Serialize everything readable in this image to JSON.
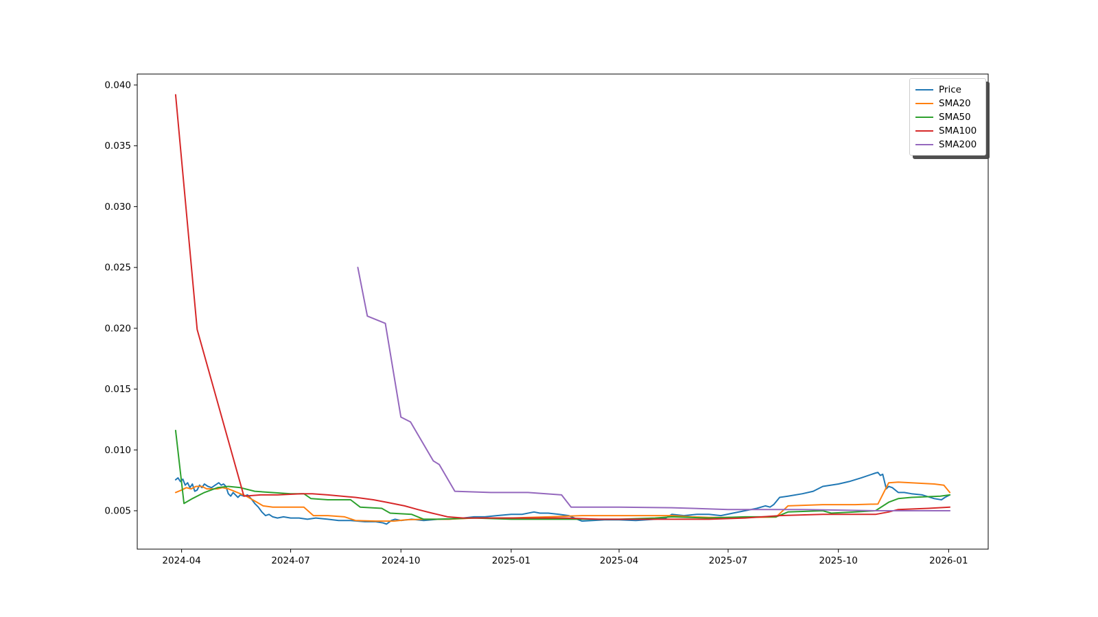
{
  "figure": {
    "background": "#ffffff",
    "title": ""
  },
  "chart_data": {
    "type": "line",
    "title": "",
    "xlabel": "",
    "ylabel": "",
    "grid": false,
    "legend_position": "upper right",
    "xlim_dates": [
      "2024-02-24",
      "2026-02-03"
    ],
    "ylim": [
      0.001844,
      0.0409
    ],
    "x_ticks": [
      {
        "date": "2024-04-01",
        "label": "2024-04"
      },
      {
        "date": "2024-07-01",
        "label": "2024-07"
      },
      {
        "date": "2024-10-01",
        "label": "2024-10"
      },
      {
        "date": "2025-01-01",
        "label": "2025-01"
      },
      {
        "date": "2025-04-01",
        "label": "2025-04"
      },
      {
        "date": "2025-07-01",
        "label": "2025-07"
      },
      {
        "date": "2025-10-01",
        "label": "2025-10"
      },
      {
        "date": "2026-01-01",
        "label": "2026-01"
      }
    ],
    "y_ticks": [
      {
        "value": 0.005,
        "label": "0.005"
      },
      {
        "value": 0.01,
        "label": "0.010"
      },
      {
        "value": 0.015,
        "label": "0.015"
      },
      {
        "value": 0.02,
        "label": "0.020"
      },
      {
        "value": 0.025,
        "label": "0.025"
      },
      {
        "value": 0.03,
        "label": "0.030"
      },
      {
        "value": 0.035,
        "label": "0.035"
      },
      {
        "value": 0.04,
        "label": "0.040"
      }
    ],
    "series": [
      {
        "name": "Price",
        "color": "#1f77b4",
        "points": [
          [
            "2024-03-27",
            0.00755
          ],
          [
            "2024-03-29",
            0.0077
          ],
          [
            "2024-03-31",
            0.0074
          ],
          [
            "2024-04-02",
            0.0076
          ],
          [
            "2024-04-04",
            0.0071
          ],
          [
            "2024-04-06",
            0.0073
          ],
          [
            "2024-04-08",
            0.0069
          ],
          [
            "2024-04-10",
            0.0072
          ],
          [
            "2024-04-12",
            0.0066
          ],
          [
            "2024-04-14",
            0.0067
          ],
          [
            "2024-04-16",
            0.0071
          ],
          [
            "2024-04-18",
            0.0069
          ],
          [
            "2024-04-20",
            0.0072
          ],
          [
            "2024-04-23",
            0.007
          ],
          [
            "2024-04-26",
            0.0069
          ],
          [
            "2024-04-29",
            0.0071
          ],
          [
            "2024-05-02",
            0.0073
          ],
          [
            "2024-05-04",
            0.0071
          ],
          [
            "2024-05-06",
            0.0072
          ],
          [
            "2024-05-08",
            0.007
          ],
          [
            "2024-05-10",
            0.0064
          ],
          [
            "2024-05-12",
            0.0062
          ],
          [
            "2024-05-14",
            0.0065
          ],
          [
            "2024-05-16",
            0.0063
          ],
          [
            "2024-05-18",
            0.0061
          ],
          [
            "2024-05-20",
            0.0063
          ],
          [
            "2024-05-23",
            0.0062
          ],
          [
            "2024-05-26",
            0.0063
          ],
          [
            "2024-05-29",
            0.006
          ],
          [
            "2024-06-01",
            0.0056
          ],
          [
            "2024-06-04",
            0.0053
          ],
          [
            "2024-06-07",
            0.0049
          ],
          [
            "2024-06-10",
            0.0046
          ],
          [
            "2024-06-13",
            0.0047
          ],
          [
            "2024-06-16",
            0.0045
          ],
          [
            "2024-06-20",
            0.0044
          ],
          [
            "2024-06-25",
            0.0045
          ],
          [
            "2024-07-01",
            0.0044
          ],
          [
            "2024-07-08",
            0.0044
          ],
          [
            "2024-07-15",
            0.0043
          ],
          [
            "2024-07-22",
            0.0044
          ],
          [
            "2024-08-01",
            0.0043
          ],
          [
            "2024-08-10",
            0.0042
          ],
          [
            "2024-08-20",
            0.0042
          ],
          [
            "2024-09-01",
            0.0041
          ],
          [
            "2024-09-10",
            0.0041
          ],
          [
            "2024-09-16",
            0.004
          ],
          [
            "2024-09-19",
            0.0039
          ],
          [
            "2024-09-23",
            0.0042
          ],
          [
            "2024-09-26",
            0.0043
          ],
          [
            "2024-10-01",
            0.0042
          ],
          [
            "2024-10-10",
            0.0043
          ],
          [
            "2024-10-20",
            0.0042
          ],
          [
            "2024-11-01",
            0.0043
          ],
          [
            "2024-11-10",
            0.0043
          ],
          [
            "2024-11-22",
            0.0044
          ],
          [
            "2024-12-01",
            0.0045
          ],
          [
            "2024-12-10",
            0.0045
          ],
          [
            "2024-12-20",
            0.0046
          ],
          [
            "2025-01-01",
            0.0047
          ],
          [
            "2025-01-10",
            0.0047
          ],
          [
            "2025-01-20",
            0.0049
          ],
          [
            "2025-01-25",
            0.0048
          ],
          [
            "2025-02-01",
            0.0048
          ],
          [
            "2025-02-10",
            0.0047
          ],
          [
            "2025-02-18",
            0.0046
          ],
          [
            "2025-02-25",
            0.0043
          ],
          [
            "2025-03-01",
            0.00415
          ],
          [
            "2025-03-10",
            0.0042
          ],
          [
            "2025-03-20",
            0.00425
          ],
          [
            "2025-04-01",
            0.00425
          ],
          [
            "2025-04-15",
            0.0042
          ],
          [
            "2025-05-01",
            0.0043
          ],
          [
            "2025-05-10",
            0.0044
          ],
          [
            "2025-05-15",
            0.0047
          ],
          [
            "2025-05-25",
            0.0046
          ],
          [
            "2025-06-05",
            0.0047
          ],
          [
            "2025-06-15",
            0.0047
          ],
          [
            "2025-06-25",
            0.0046
          ],
          [
            "2025-07-05",
            0.0048
          ],
          [
            "2025-07-15",
            0.005
          ],
          [
            "2025-07-25",
            0.0052
          ],
          [
            "2025-08-01",
            0.0054
          ],
          [
            "2025-08-05",
            0.0053
          ],
          [
            "2025-08-08",
            0.0055
          ],
          [
            "2025-08-13",
            0.0061
          ],
          [
            "2025-08-20",
            0.0062
          ],
          [
            "2025-09-01",
            0.0064
          ],
          [
            "2025-09-10",
            0.0066
          ],
          [
            "2025-09-18",
            0.007
          ],
          [
            "2025-10-01",
            0.0072
          ],
          [
            "2025-10-10",
            0.0074
          ],
          [
            "2025-10-20",
            0.0077
          ],
          [
            "2025-11-01",
            0.0081
          ],
          [
            "2025-11-03",
            0.00815
          ],
          [
            "2025-11-05",
            0.0079
          ],
          [
            "2025-11-07",
            0.008
          ],
          [
            "2025-11-10",
            0.0068
          ],
          [
            "2025-11-12",
            0.007
          ],
          [
            "2025-11-15",
            0.0069
          ],
          [
            "2025-11-20",
            0.0065
          ],
          [
            "2025-11-25",
            0.0065
          ],
          [
            "2025-12-01",
            0.0064
          ],
          [
            "2025-12-10",
            0.0063
          ],
          [
            "2025-12-20",
            0.006
          ],
          [
            "2025-12-26",
            0.0059
          ],
          [
            "2025-12-29",
            0.0061
          ],
          [
            "2026-01-02",
            0.0063
          ]
        ]
      },
      {
        "name": "SMA20",
        "color": "#ff7f0e",
        "points": [
          [
            "2024-03-27",
            0.0065
          ],
          [
            "2024-04-01",
            0.0067
          ],
          [
            "2024-04-05",
            0.0069
          ],
          [
            "2024-04-09",
            0.0068
          ],
          [
            "2024-04-13",
            0.007
          ],
          [
            "2024-04-18",
            0.007
          ],
          [
            "2024-04-22",
            0.0068
          ],
          [
            "2024-04-26",
            0.0068
          ],
          [
            "2024-05-01",
            0.0068
          ],
          [
            "2024-05-05",
            0.0069
          ],
          [
            "2024-05-10",
            0.0068
          ],
          [
            "2024-05-15",
            0.0066
          ],
          [
            "2024-05-20",
            0.0064
          ],
          [
            "2024-05-25",
            0.0062
          ],
          [
            "2024-06-01",
            0.0058
          ],
          [
            "2024-06-08",
            0.0054
          ],
          [
            "2024-06-16",
            0.0053
          ],
          [
            "2024-07-12",
            0.0053
          ],
          [
            "2024-07-20",
            0.0046
          ],
          [
            "2024-08-01",
            0.0046
          ],
          [
            "2024-08-15",
            0.0045
          ],
          [
            "2024-08-24",
            0.0042
          ],
          [
            "2024-09-10",
            0.00415
          ],
          [
            "2024-09-25",
            0.00415
          ],
          [
            "2024-10-05",
            0.00425
          ],
          [
            "2024-10-20",
            0.0043
          ],
          [
            "2024-11-10",
            0.0043
          ],
          [
            "2024-12-01",
            0.0044
          ],
          [
            "2025-01-01",
            0.0044
          ],
          [
            "2025-02-01",
            0.0045
          ],
          [
            "2025-03-01",
            0.0046
          ],
          [
            "2025-04-01",
            0.0046
          ],
          [
            "2025-05-15",
            0.0046
          ],
          [
            "2025-06-01",
            0.0045
          ],
          [
            "2025-06-15",
            0.00445
          ],
          [
            "2025-07-15",
            0.00445
          ],
          [
            "2025-08-10",
            0.00448
          ],
          [
            "2025-08-20",
            0.0054
          ],
          [
            "2025-09-18",
            0.0055
          ],
          [
            "2025-10-15",
            0.0055
          ],
          [
            "2025-11-03",
            0.00555
          ],
          [
            "2025-11-12",
            0.0073
          ],
          [
            "2025-11-20",
            0.00735
          ],
          [
            "2025-12-20",
            0.0072
          ],
          [
            "2025-12-28",
            0.0071
          ],
          [
            "2026-01-02",
            0.0065
          ]
        ]
      },
      {
        "name": "SMA50",
        "color": "#2ca02c",
        "points": [
          [
            "2024-03-27",
            0.0116
          ],
          [
            "2024-04-03",
            0.0056
          ],
          [
            "2024-04-10",
            0.006
          ],
          [
            "2024-04-20",
            0.0065
          ],
          [
            "2024-05-01",
            0.0069
          ],
          [
            "2024-05-10",
            0.007
          ],
          [
            "2024-05-20",
            0.0069
          ],
          [
            "2024-06-01",
            0.0066
          ],
          [
            "2024-06-15",
            0.0065
          ],
          [
            "2024-07-01",
            0.0064
          ],
          [
            "2024-07-12",
            0.0064
          ],
          [
            "2024-07-18",
            0.006
          ],
          [
            "2024-08-01",
            0.0059
          ],
          [
            "2024-08-20",
            0.0059
          ],
          [
            "2024-08-28",
            0.0053
          ],
          [
            "2024-09-15",
            0.0052
          ],
          [
            "2024-09-22",
            0.0048
          ],
          [
            "2024-10-10",
            0.0047
          ],
          [
            "2024-10-20",
            0.0043
          ],
          [
            "2024-11-01",
            0.0043
          ],
          [
            "2024-12-01",
            0.0044
          ],
          [
            "2025-01-01",
            0.0043
          ],
          [
            "2025-02-01",
            0.0043
          ],
          [
            "2025-03-01",
            0.0043
          ],
          [
            "2025-04-01",
            0.0043
          ],
          [
            "2025-05-01",
            0.0044
          ],
          [
            "2025-05-15",
            0.0045
          ],
          [
            "2025-06-15",
            0.0044
          ],
          [
            "2025-07-15",
            0.0045
          ],
          [
            "2025-08-10",
            0.0045
          ],
          [
            "2025-08-20",
            0.0049
          ],
          [
            "2025-09-18",
            0.005
          ],
          [
            "2025-09-25",
            0.0048
          ],
          [
            "2025-10-15",
            0.0049
          ],
          [
            "2025-11-01",
            0.005
          ],
          [
            "2025-11-12",
            0.0057
          ],
          [
            "2025-11-20",
            0.006
          ],
          [
            "2025-12-01",
            0.0061
          ],
          [
            "2025-12-25",
            0.0062
          ],
          [
            "2026-01-02",
            0.0063
          ]
        ]
      },
      {
        "name": "SMA100",
        "color": "#d62728",
        "points": [
          [
            "2024-03-27",
            0.0392
          ],
          [
            "2024-04-14",
            0.0199
          ],
          [
            "2024-05-23",
            0.0062
          ],
          [
            "2024-06-06",
            0.0063
          ],
          [
            "2024-06-20",
            0.0063
          ],
          [
            "2024-07-10",
            0.0064
          ],
          [
            "2024-07-19",
            0.0064
          ],
          [
            "2024-08-01",
            0.0063
          ],
          [
            "2024-08-24",
            0.0061
          ],
          [
            "2024-09-08",
            0.0059
          ],
          [
            "2024-09-19",
            0.0057
          ],
          [
            "2024-10-04",
            0.0054
          ],
          [
            "2024-10-15",
            0.0051
          ],
          [
            "2024-10-27",
            0.0048
          ],
          [
            "2024-11-09",
            0.0045
          ],
          [
            "2024-11-22",
            0.0044
          ],
          [
            "2024-12-15",
            0.0044
          ],
          [
            "2025-01-15",
            0.0044
          ],
          [
            "2025-02-15",
            0.0044
          ],
          [
            "2025-03-15",
            0.0043
          ],
          [
            "2025-04-15",
            0.0043
          ],
          [
            "2025-05-15",
            0.0043
          ],
          [
            "2025-06-15",
            0.0043
          ],
          [
            "2025-07-15",
            0.0044
          ],
          [
            "2025-08-13",
            0.0046
          ],
          [
            "2025-09-18",
            0.0047
          ],
          [
            "2025-10-15",
            0.0047
          ],
          [
            "2025-11-01",
            0.0047
          ],
          [
            "2025-11-12",
            0.0049
          ],
          [
            "2025-11-20",
            0.0051
          ],
          [
            "2025-12-15",
            0.0052
          ],
          [
            "2026-01-02",
            0.0053
          ]
        ]
      },
      {
        "name": "SMA200",
        "color": "#9467bd",
        "points": [
          [
            "2024-08-26",
            0.025
          ],
          [
            "2024-09-03",
            0.021
          ],
          [
            "2024-09-18",
            0.0204
          ],
          [
            "2024-10-01",
            0.0127
          ],
          [
            "2024-10-09",
            0.0123
          ],
          [
            "2024-10-28",
            0.0091
          ],
          [
            "2024-11-02",
            0.0088
          ],
          [
            "2024-11-15",
            0.0066
          ],
          [
            "2024-12-15",
            0.0065
          ],
          [
            "2025-01-15",
            0.0065
          ],
          [
            "2025-02-12",
            0.0063
          ],
          [
            "2025-02-20",
            0.0053
          ],
          [
            "2025-04-01",
            0.0053
          ],
          [
            "2025-05-15",
            0.00525
          ],
          [
            "2025-07-01",
            0.0051
          ],
          [
            "2025-09-01",
            0.0051
          ],
          [
            "2025-11-01",
            0.005
          ],
          [
            "2026-01-02",
            0.005
          ]
        ]
      }
    ],
    "axis_colors": {
      "spine": "#000000",
      "tick": "#000000",
      "tick_label": "#000000"
    }
  },
  "legend": {
    "entries": [
      {
        "label": "Price"
      },
      {
        "label": "SMA20"
      },
      {
        "label": "SMA50"
      },
      {
        "label": "SMA100"
      },
      {
        "label": "SMA200"
      }
    ]
  }
}
